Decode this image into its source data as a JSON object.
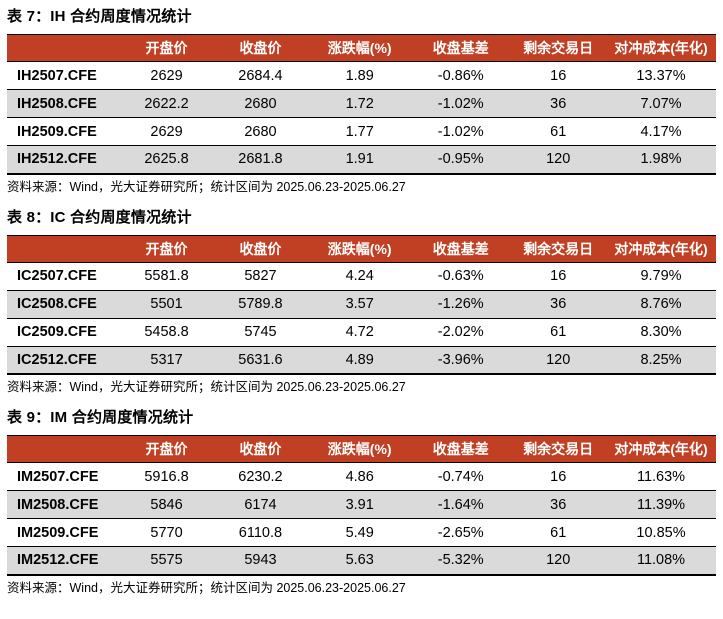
{
  "colors": {
    "header_bg": "#C14023",
    "header_text": "#FFFFFF",
    "stripe_row_bg": "#DADADA",
    "border": "#000000",
    "page_bg": "#FFFFFF"
  },
  "columns": [
    "",
    "开盘价",
    "收盘价",
    "涨跌幅(%)",
    "收盘基差",
    "剩余交易日",
    "对冲成本(年化)"
  ],
  "source_note": "资料来源：Wind，光大证券研究所；统计区间为 2025.06.23-2025.06.27",
  "tables": [
    {
      "title": "表 7：IH 合约周度情况统计",
      "rows": [
        {
          "cells": [
            "IH2507.CFE",
            "2629",
            "2684.4",
            "1.89",
            "-0.86%",
            "16",
            "13.37%"
          ]
        },
        {
          "cells": [
            "IH2508.CFE",
            "2622.2",
            "2680",
            "1.72",
            "-1.02%",
            "36",
            "7.07%"
          ]
        },
        {
          "cells": [
            "IH2509.CFE",
            "2629",
            "2680",
            "1.77",
            "-1.02%",
            "61",
            "4.17%"
          ]
        },
        {
          "cells": [
            "IH2512.CFE",
            "2625.8",
            "2681.8",
            "1.91",
            "-0.95%",
            "120",
            "1.98%"
          ]
        }
      ]
    },
    {
      "title": "表 8：IC 合约周度情况统计",
      "rows": [
        {
          "cells": [
            "IC2507.CFE",
            "5581.8",
            "5827",
            "4.24",
            "-0.63%",
            "16",
            "9.79%"
          ]
        },
        {
          "cells": [
            "IC2508.CFE",
            "5501",
            "5789.8",
            "3.57",
            "-1.26%",
            "36",
            "8.76%"
          ]
        },
        {
          "cells": [
            "IC2509.CFE",
            "5458.8",
            "5745",
            "4.72",
            "-2.02%",
            "61",
            "8.30%"
          ]
        },
        {
          "cells": [
            "IC2512.CFE",
            "5317",
            "5631.6",
            "4.89",
            "-3.96%",
            "120",
            "8.25%"
          ]
        }
      ]
    },
    {
      "title": "表 9：IM 合约周度情况统计",
      "rows": [
        {
          "cells": [
            "IM2507.CFE",
            "5916.8",
            "6230.2",
            "4.86",
            "-0.74%",
            "16",
            "11.63%"
          ]
        },
        {
          "cells": [
            "IM2508.CFE",
            "5846",
            "6174",
            "3.91",
            "-1.64%",
            "36",
            "11.39%"
          ]
        },
        {
          "cells": [
            "IM2509.CFE",
            "5770",
            "6110.8",
            "5.49",
            "-2.65%",
            "61",
            "10.85%"
          ]
        },
        {
          "cells": [
            "IM2512.CFE",
            "5575",
            "5943",
            "5.63",
            "-5.32%",
            "120",
            "11.08%"
          ]
        }
      ]
    }
  ]
}
